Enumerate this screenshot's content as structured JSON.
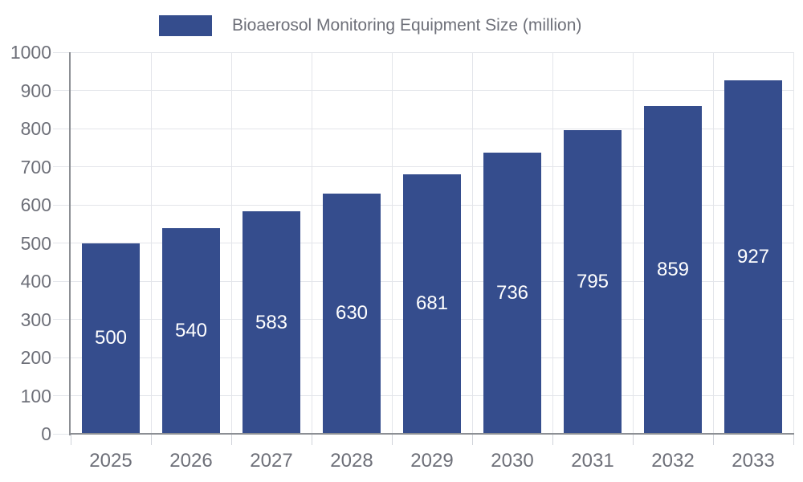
{
  "legend": {
    "label": "Bioaerosol Monitoring Equipment Size (million)",
    "swatch_color": "#354D8D"
  },
  "chart_data": {
    "type": "bar",
    "title": "Bioaerosol Monitoring Equipment Size (million)",
    "categories": [
      "2025",
      "2026",
      "2027",
      "2028",
      "2029",
      "2030",
      "2031",
      "2032",
      "2033"
    ],
    "values": [
      500,
      540,
      583,
      630,
      681,
      736,
      795,
      859,
      927
    ],
    "xlabel": "",
    "ylabel": "",
    "ylim": [
      0,
      1000
    ],
    "ytick_step": 100,
    "yticks": [
      0,
      100,
      200,
      300,
      400,
      500,
      600,
      700,
      800,
      900,
      1000
    ],
    "grid": true,
    "legend_position": "top",
    "bar_color": "#354D8D",
    "value_label_color": "#ffffff"
  },
  "style": {
    "background": "#ffffff",
    "axis_text_color": "#6e7079",
    "grid_line_color": "#e3e5ea",
    "x_tick_color": "#d0d3da",
    "axis_line_color": "#8c8f94"
  }
}
